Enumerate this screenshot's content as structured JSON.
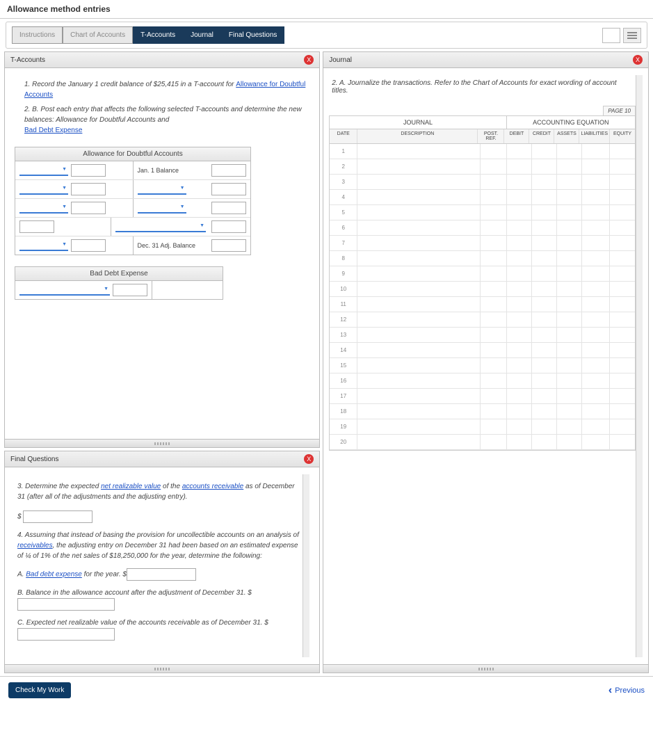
{
  "page": {
    "title": "Allowance method entries"
  },
  "tabs": {
    "instructions": "Instructions",
    "chart": "Chart of Accounts",
    "taccounts": "T-Accounts",
    "journal": "Journal",
    "final": "Final Questions"
  },
  "taccounts_panel": {
    "title": "T-Accounts",
    "instr1_pre": "1.  Record the January 1 credit balance of $25,415 in a T-account for ",
    "instr1_link": "Allowance for Doubtful Accounts",
    "instr2_pre": "2. B.  Post each entry that affects the following selected T-accounts and determine the new balances: Allowance for Doubtful Accounts and",
    "instr2_link": "Bad Debt Expense",
    "acct1": {
      "title": "Allowance for Doubtful Accounts",
      "jan1": "Jan. 1 Balance",
      "dec31": "Dec. 31 Adj. Balance"
    },
    "acct2": {
      "title": "Bad Debt Expense"
    }
  },
  "journal_panel": {
    "title": "Journal",
    "instr": "2. A. Journalize the transactions. Refer to the Chart of Accounts for exact wording of account titles.",
    "page_label": "PAGE 10",
    "header_journal": "JOURNAL",
    "header_acct": "ACCOUNTING EQUATION",
    "cols": {
      "date": "DATE",
      "desc": "DESCRIPTION",
      "post": "POST. REF.",
      "debit": "DEBIT",
      "credit": "CREDIT",
      "assets": "ASSETS",
      "liab": "LIABILITIES",
      "equity": "EQUITY"
    },
    "row_count": 20
  },
  "final_panel": {
    "title": "Final Questions",
    "q3_pre": "3. Determine the expected ",
    "q3_link1": "net realizable value",
    "q3_mid": " of the ",
    "q3_link2": "accounts receivable",
    "q3_post": " as of December 31 (after all of the adjustments and the adjusting entry).",
    "currency": "$",
    "q4_pre": "4. Assuming that instead of basing the provision for uncollectible accounts on an analysis of ",
    "q4_link": "receivables",
    "q4_post": ", the adjusting entry on December 31 had been based on an estimated expense of ¼ of 1% of the net sales of $18,250,000 for the year, determine the following:",
    "qA_pre": "A. ",
    "qA_link": "Bad debt expense",
    "qA_post": " for the year. $",
    "qB": "B. Balance in the allowance account after the adjustment of December 31. $",
    "qC": "C. Expected net realizable value of the accounts receivable as of December 31. $"
  },
  "footer": {
    "check": "Check My Work",
    "previous": "Previous"
  },
  "colors": {
    "tab_active_bg": "#1a3a5a",
    "link": "#1a4fc4",
    "close": "#d33"
  }
}
